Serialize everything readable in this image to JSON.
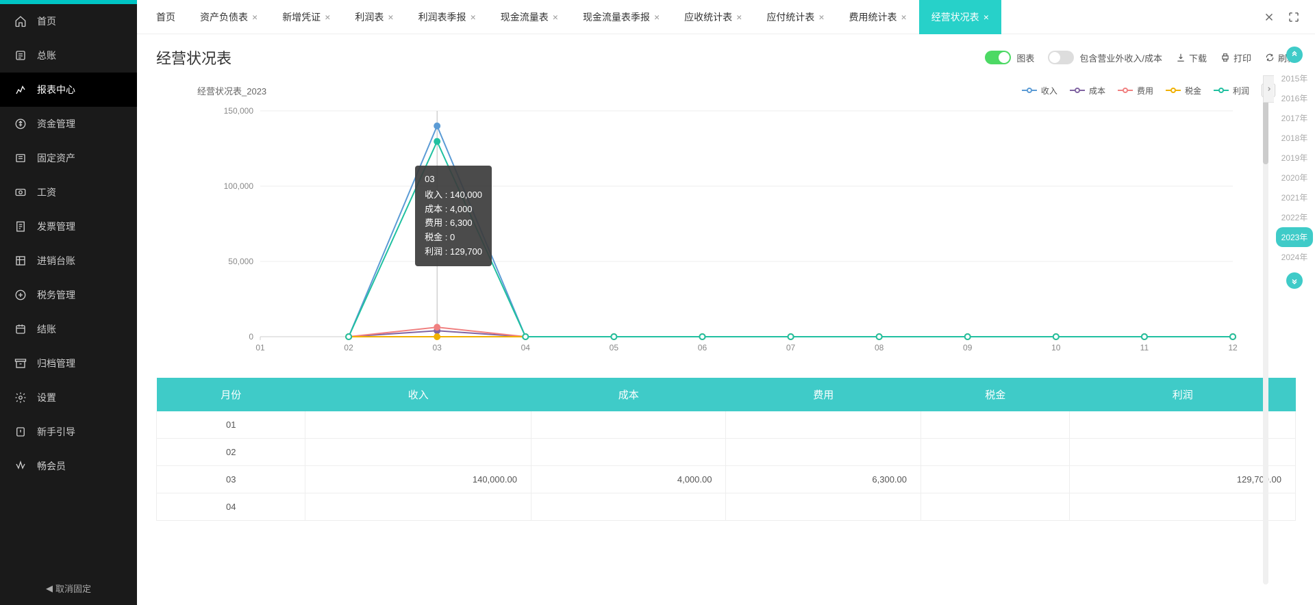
{
  "sidebar": {
    "items": [
      {
        "icon": "home",
        "label": "首页"
      },
      {
        "icon": "ledger",
        "label": "总账"
      },
      {
        "icon": "report",
        "label": "报表中心",
        "active": true
      },
      {
        "icon": "money",
        "label": "资金管理"
      },
      {
        "icon": "asset",
        "label": "固定资产"
      },
      {
        "icon": "salary",
        "label": "工资"
      },
      {
        "icon": "invoice",
        "label": "发票管理"
      },
      {
        "icon": "stock",
        "label": "进销台账"
      },
      {
        "icon": "tax",
        "label": "税务管理"
      },
      {
        "icon": "close-period",
        "label": "结账"
      },
      {
        "icon": "archive",
        "label": "归档管理"
      },
      {
        "icon": "settings",
        "label": "设置"
      },
      {
        "icon": "guide",
        "label": "新手引导"
      },
      {
        "icon": "vip",
        "label": "畅会员"
      }
    ],
    "footer": "取消固定"
  },
  "tabs": {
    "items": [
      {
        "label": "首页",
        "closable": false
      },
      {
        "label": "资产负债表",
        "closable": true
      },
      {
        "label": "新增凭证",
        "closable": true
      },
      {
        "label": "利润表",
        "closable": true
      },
      {
        "label": "利润表季报",
        "closable": true
      },
      {
        "label": "现金流量表",
        "closable": true
      },
      {
        "label": "现金流量表季报",
        "closable": true
      },
      {
        "label": "应收统计表",
        "closable": true
      },
      {
        "label": "应付统计表",
        "closable": true
      },
      {
        "label": "费用统计表",
        "closable": true
      },
      {
        "label": "经营状况表",
        "closable": true,
        "active": true
      }
    ]
  },
  "page": {
    "title": "经营状况表",
    "toggle_chart_label": "图表",
    "toggle_extra_label": "包含营业外收入/成本",
    "download_label": "下载",
    "print_label": "打印",
    "refresh_label": "刷新"
  },
  "chart": {
    "title": "经营状况表_2023",
    "type": "line",
    "x_categories": [
      "01",
      "02",
      "03",
      "04",
      "05",
      "06",
      "07",
      "08",
      "09",
      "10",
      "11",
      "12"
    ],
    "y_ticks": [
      0,
      50000,
      100000,
      150000
    ],
    "y_tick_labels": [
      "0",
      "50,000",
      "100,000",
      "150,000"
    ],
    "ylim": [
      0,
      150000
    ],
    "background_color": "#ffffff",
    "grid_color": "#eeeeee",
    "axis_color": "#cccccc",
    "series": [
      {
        "name": "收入",
        "color": "#5b9bd5",
        "data": [
          null,
          0,
          140000,
          0,
          0,
          0,
          0,
          0,
          0,
          0,
          0,
          0
        ]
      },
      {
        "name": "成本",
        "color": "#8064a2",
        "data": [
          null,
          0,
          4000,
          0,
          0,
          0,
          0,
          0,
          0,
          0,
          0,
          0
        ]
      },
      {
        "name": "费用",
        "color": "#f08080",
        "data": [
          null,
          0,
          6300,
          0,
          0,
          0,
          0,
          0,
          0,
          0,
          0,
          0
        ]
      },
      {
        "name": "税金",
        "color": "#f0b000",
        "data": [
          null,
          0,
          0,
          0,
          0,
          0,
          0,
          0,
          0,
          0,
          0,
          0
        ]
      },
      {
        "name": "利润",
        "color": "#20c0a0",
        "data": [
          null,
          0,
          129700,
          0,
          0,
          0,
          0,
          0,
          0,
          0,
          0,
          0
        ]
      }
    ],
    "tooltip": {
      "x_index": 2,
      "title": "03",
      "lines": [
        "收入 : 140,000",
        "成本 : 4,000",
        "费用 : 6,300",
        "税金 : 0",
        "利润 : 129,700"
      ]
    },
    "marker_radius": 4,
    "line_width": 2
  },
  "table": {
    "columns": [
      "月份",
      "收入",
      "成本",
      "费用",
      "税金",
      "利润"
    ],
    "rows": [
      {
        "month": "01",
        "cells": [
          "",
          "",
          "",
          "",
          ""
        ]
      },
      {
        "month": "02",
        "cells": [
          "",
          "",
          "",
          "",
          ""
        ]
      },
      {
        "month": "03",
        "cells": [
          "140,000.00",
          "4,000.00",
          "6,300.00",
          "",
          "129,700.00"
        ]
      },
      {
        "month": "04",
        "cells": [
          "",
          "",
          "",
          "",
          ""
        ]
      }
    ]
  },
  "years": {
    "list": [
      "2015年",
      "2016年",
      "2017年",
      "2018年",
      "2019年",
      "2020年",
      "2021年",
      "2022年",
      "2023年",
      "2024年"
    ],
    "active": "2023年"
  }
}
